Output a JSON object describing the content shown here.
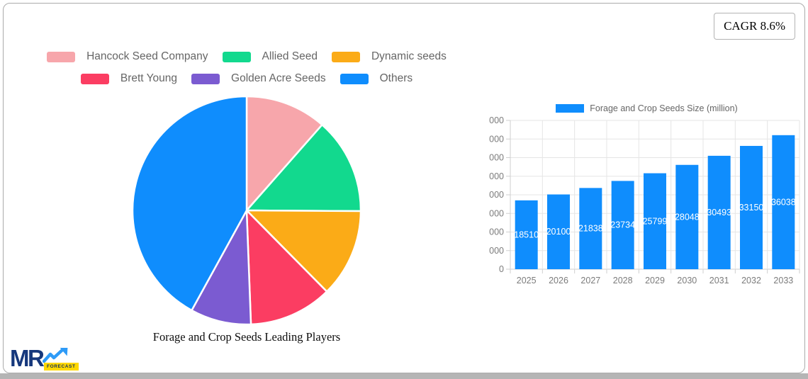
{
  "badge": {
    "label": "CAGR 8.6%"
  },
  "logo": {
    "text": "MR",
    "sub": "FORECAST"
  },
  "chart_data": [
    {
      "type": "pie",
      "title": "Forage and Crop Seeds Leading Players",
      "labels": [
        "Hancock Seed Company",
        "Allied Seed",
        "Dynamic seeds",
        "Brett Young",
        "Golden Acre Seeds",
        "Others"
      ],
      "values": [
        11.5,
        13.6,
        12.5,
        11.8,
        8.6,
        42.0
      ],
      "unit": "estimated % share",
      "colors": [
        "#F7A6AB",
        "#12D98E",
        "#FBAB17",
        "#FB3D62",
        "#7B5BD1",
        "#0F8DFD"
      ],
      "legend_position": "top",
      "legend_rows": [
        3,
        3
      ],
      "start_angle_deg": -90,
      "direction": "clockwise"
    },
    {
      "type": "bar",
      "series_label": "Forage and Crop Seeds Size (million)",
      "categories": [
        "2025",
        "2026",
        "2027",
        "2028",
        "2029",
        "2030",
        "2031",
        "2032",
        "2033"
      ],
      "values": [
        18510,
        20100,
        21838,
        23734,
        25799,
        28048,
        30493,
        33150,
        36038
      ],
      "bar_color": "#0F8DFD",
      "value_label_color": "#ffffff",
      "ylim": [
        0,
        40000
      ],
      "ytick_step": 5000,
      "grid": true,
      "legend_position": "top"
    }
  ]
}
